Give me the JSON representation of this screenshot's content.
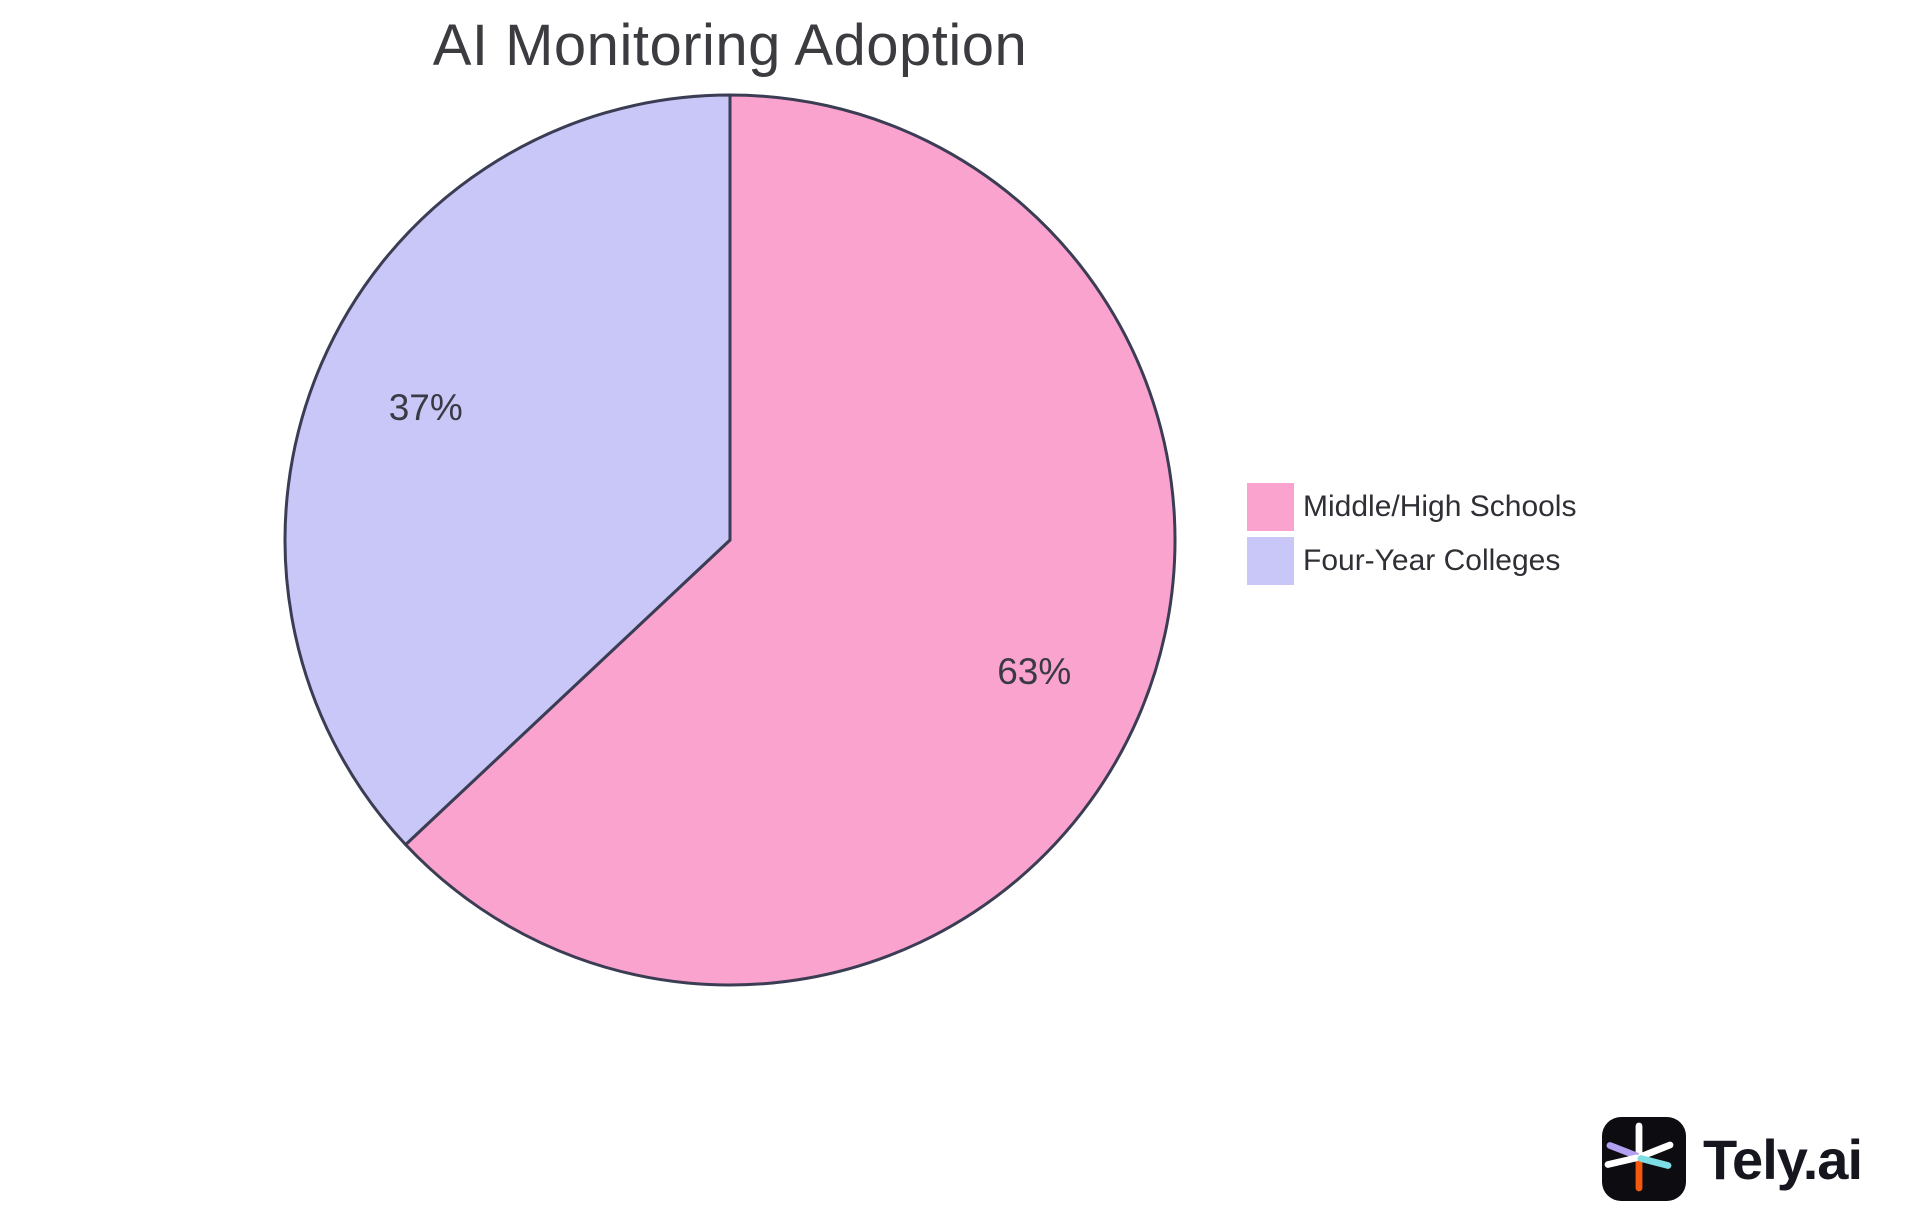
{
  "canvas": {
    "background": "#FFFFFF"
  },
  "chart_data": {
    "type": "pie",
    "title": "AI Monitoring Adoption",
    "slices": [
      {
        "label": "Middle/High Schools",
        "value": 63,
        "display_label": "63%",
        "color": "#FBA3CF"
      },
      {
        "label": "Four-Year Colleges",
        "value": 37,
        "display_label": "37%",
        "color": "#C9C7F8"
      }
    ],
    "start_angle": "top",
    "direction": "clockwise",
    "stroke_color": "#3B3D54",
    "stroke_width": 3,
    "slice_label_color": "#3A3A44",
    "legend_position": "right",
    "legend_text_color": "#2F2F36",
    "title_color": "#3C3C40",
    "background": "#FFFFFF"
  },
  "logo": {
    "text": "Tely.ai",
    "text_color": "#16161F",
    "tile_color": "#0C0C11",
    "spoke_colors": {
      "top": "#FFFFFF",
      "upper_right": "#FFFFFF",
      "lower_right": "#7EDEE6",
      "bottom": "#F4580E",
      "lower_left": "#FFFFFF",
      "upper_left": "#B2A1F0"
    }
  }
}
